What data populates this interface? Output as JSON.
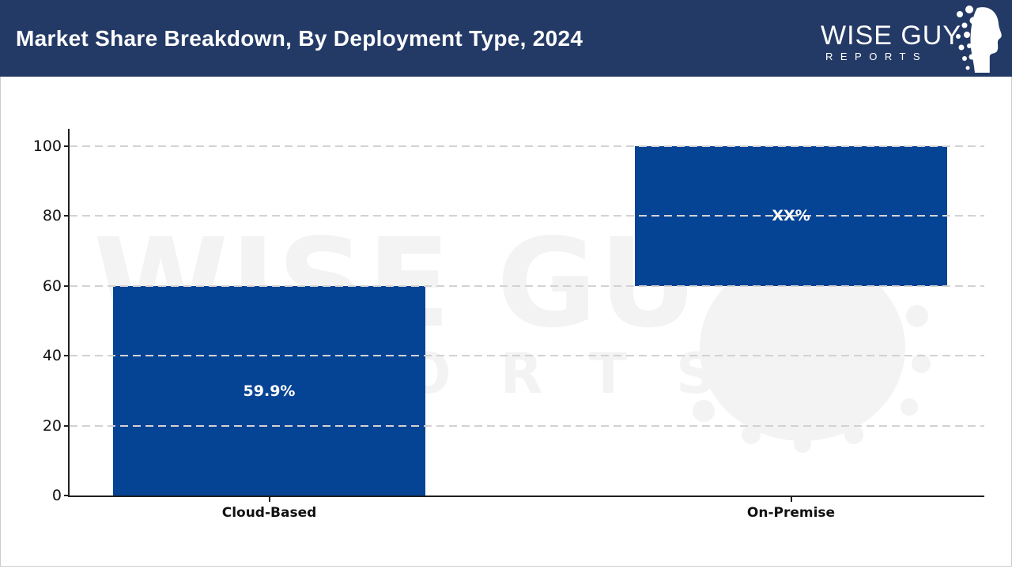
{
  "header": {
    "title": "Market Share Breakdown, By Deployment Type, 2024",
    "logo": {
      "wise_guy": "WISE GUY",
      "reports": "REPORTS"
    }
  },
  "watermark": {
    "wise_guy": "WISE GUY",
    "reports": "REPORTS"
  },
  "colors": {
    "header_bg": "#243a66",
    "bar": "#054394",
    "gridline": "#d2d2d2",
    "axis": "#1f1f1f",
    "bar_label_text": "#ffffff",
    "watermark": "#f3f3f4"
  },
  "chart_data": {
    "type": "bar",
    "title": "Market Share Breakdown, By Deployment Type, 2024",
    "categories": [
      "Cloud-Based",
      "On-Premise"
    ],
    "bars": [
      {
        "category": "Cloud-Based",
        "base": 0,
        "top": 59.9,
        "label": "59.9%"
      },
      {
        "category": "On-Premise",
        "base": 60,
        "top": 100,
        "label": "XX%"
      }
    ],
    "yticks": [
      0,
      20,
      40,
      60,
      80,
      100
    ],
    "ylim": [
      0,
      105
    ],
    "xlabel": "",
    "ylabel": "",
    "grid": "dashed-horizontal",
    "legend": "none"
  }
}
